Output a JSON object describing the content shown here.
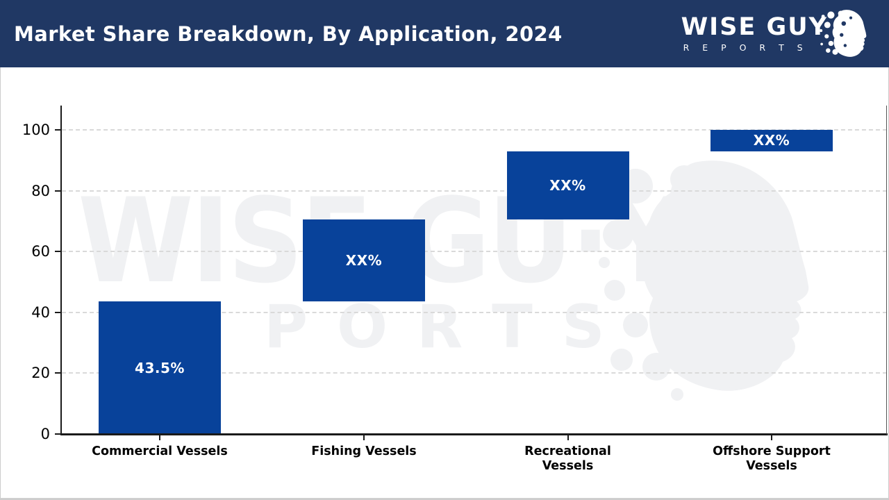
{
  "header": {
    "title": "Market Share Breakdown, By Application, 2024",
    "logo": {
      "name_top": "WISE GUY",
      "name_bottom": "R E P O R T S"
    }
  },
  "watermark": {
    "big_text": "WISE GU·Y",
    "small_text": "P O R T S"
  },
  "chart_data": {
    "type": "bar",
    "variant": "floating-waterfall",
    "title": "Market Share Breakdown, By Application, 2024",
    "categories": [
      "Commercial Vessels",
      "Fishing Vessels",
      "Recreational\nVessels",
      "Offshore Support\nVessels"
    ],
    "segments": [
      {
        "category": "Commercial Vessels",
        "start": 0,
        "end": 43.5,
        "label": "43.5%"
      },
      {
        "category": "Fishing Vessels",
        "start": 43.5,
        "end": 70.5,
        "label": "XX%"
      },
      {
        "category": "Recreational Vessels",
        "start": 70.5,
        "end": 93,
        "label": "XX%"
      },
      {
        "category": "Offshore Support Vessels",
        "start": 93,
        "end": 100,
        "label": "XX%"
      }
    ],
    "ylim": [
      0,
      100
    ],
    "yticks": [
      0,
      20,
      40,
      60,
      80,
      100
    ],
    "xlabel": "",
    "ylabel": "",
    "grid": "horizontal-dashed",
    "legend": "none",
    "bar_color": "#08429a",
    "value_label_color": "#ffffff",
    "axis_color": "#1a1a1a",
    "grid_color": "#d9d9d9"
  },
  "colors": {
    "header_bg": "#203864",
    "watermark": "#f0f1f3",
    "bar_blue": "#08429a"
  }
}
